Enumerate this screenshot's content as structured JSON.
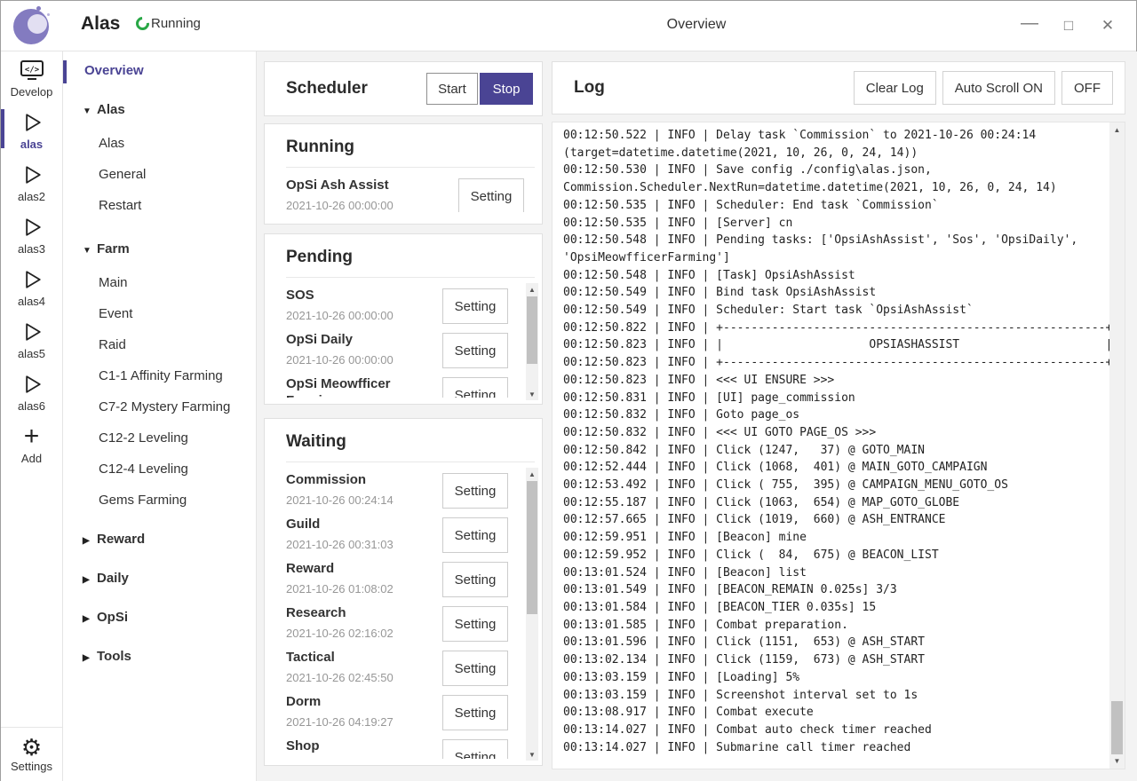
{
  "colors": {
    "accent": "#4a4494",
    "running_green": "#28a745",
    "card_border": "#e0e0e0"
  },
  "icons": {
    "minimize": "—",
    "maximize": "□",
    "close": "✕",
    "gear": "⚙",
    "plus": "+",
    "group_open": "▼",
    "group_closed": "▶",
    "scroll_up": "▲",
    "scroll_down": "▼"
  },
  "app": {
    "title": "Alas",
    "status": "Running"
  },
  "window": {
    "page_title": "Overview"
  },
  "rail": {
    "develop_label": "Develop",
    "instances": [
      {
        "label": "alas"
      },
      {
        "label": "alas2"
      },
      {
        "label": "alas3"
      },
      {
        "label": "alas4"
      },
      {
        "label": "alas5"
      },
      {
        "label": "alas6"
      }
    ],
    "add_label": "Add",
    "settings_label": "Settings"
  },
  "nav": {
    "items": [
      {
        "label": "Overview"
      },
      {
        "label": "Alas",
        "arrow": "▼"
      },
      {
        "label": "Alas"
      },
      {
        "label": "General"
      },
      {
        "label": "Restart"
      },
      {
        "label": "Farm",
        "arrow": "▼"
      },
      {
        "label": "Main"
      },
      {
        "label": "Event"
      },
      {
        "label": "Raid"
      },
      {
        "label": "C1-1 Affinity Farming"
      },
      {
        "label": "C7-2 Mystery Farming"
      },
      {
        "label": "C12-2 Leveling"
      },
      {
        "label": "C12-4 Leveling"
      },
      {
        "label": "Gems Farming"
      },
      {
        "label": "Reward",
        "arrow": "▶"
      },
      {
        "label": "Daily",
        "arrow": "▶"
      },
      {
        "label": "OpSi",
        "arrow": "▶"
      },
      {
        "label": "Tools",
        "arrow": "▶"
      }
    ]
  },
  "scheduler": {
    "title": "Scheduler",
    "start_label": "Start",
    "stop_label": "Stop"
  },
  "cards": {
    "setting_label": "Setting"
  },
  "running": {
    "title": "Running",
    "tasks": [
      {
        "name": "OpSi Ash Assist",
        "time": "2021-10-26 00:00:00"
      }
    ]
  },
  "pending": {
    "title": "Pending",
    "tasks": [
      {
        "name": "SOS",
        "time": "2021-10-26 00:00:00"
      },
      {
        "name": "OpSi Daily",
        "time": "2021-10-26 00:00:00"
      },
      {
        "name": "OpSi Meowfficer Farming",
        "time": ""
      }
    ]
  },
  "waiting": {
    "title": "Waiting",
    "tasks": [
      {
        "name": "Commission",
        "time": "2021-10-26 00:24:14"
      },
      {
        "name": "Guild",
        "time": "2021-10-26 00:31:03"
      },
      {
        "name": "Reward",
        "time": "2021-10-26 01:08:02"
      },
      {
        "name": "Research",
        "time": "2021-10-26 02:16:02"
      },
      {
        "name": "Tactical",
        "time": "2021-10-26 02:45:50"
      },
      {
        "name": "Dorm",
        "time": "2021-10-26 04:19:27"
      },
      {
        "name": "Shop",
        "time": ""
      }
    ]
  },
  "log": {
    "title": "Log",
    "clear_label": "Clear Log",
    "autoscroll_on_label": "Auto Scroll ON",
    "autoscroll_off_label": "OFF",
    "lines": [
      "00:12:50.522 | INFO | Delay task `Commission` to 2021-10-26 00:24:14",
      "(target=datetime.datetime(2021, 10, 26, 0, 24, 14))",
      "00:12:50.530 | INFO | Save config ./config\\alas.json,",
      "Commission.Scheduler.NextRun=datetime.datetime(2021, 10, 26, 0, 24, 14)",
      "00:12:50.535 | INFO | Scheduler: End task `Commission`",
      "00:12:50.535 | INFO | [Server] cn",
      "00:12:50.548 | INFO | Pending tasks: ['OpsiAshAssist', 'Sos', 'OpsiDaily',",
      "'OpsiMeowfficerFarming']",
      "00:12:50.548 | INFO | [Task] OpsiAshAssist",
      "00:12:50.549 | INFO | Bind task OpsiAshAssist",
      "00:12:50.549 | INFO | Scheduler: Start task `OpsiAshAssist`",
      "00:12:50.822 | INFO | +-------------------------------------------------------+",
      "00:12:50.823 | INFO | |                     OPSIASHASSIST                     |",
      "00:12:50.823 | INFO | +-------------------------------------------------------+",
      "00:12:50.823 | INFO | <<< UI ENSURE >>>",
      "00:12:50.831 | INFO | [UI] page_commission",
      "00:12:50.832 | INFO | Goto page_os",
      "00:12:50.832 | INFO | <<< UI GOTO PAGE_OS >>>",
      "00:12:50.842 | INFO | Click (1247,   37) @ GOTO_MAIN",
      "00:12:52.444 | INFO | Click (1068,  401) @ MAIN_GOTO_CAMPAIGN",
      "00:12:53.492 | INFO | Click ( 755,  395) @ CAMPAIGN_MENU_GOTO_OS",
      "00:12:55.187 | INFO | Click (1063,  654) @ MAP_GOTO_GLOBE",
      "00:12:57.665 | INFO | Click (1019,  660) @ ASH_ENTRANCE",
      "00:12:59.951 | INFO | [Beacon] mine",
      "00:12:59.952 | INFO | Click (  84,  675) @ BEACON_LIST",
      "00:13:01.524 | INFO | [Beacon] list",
      "00:13:01.549 | INFO | [BEACON_REMAIN 0.025s] 3/3",
      "00:13:01.584 | INFO | [BEACON_TIER 0.035s] 15",
      "00:13:01.585 | INFO | Combat preparation.",
      "00:13:01.596 | INFO | Click (1151,  653) @ ASH_START",
      "00:13:02.134 | INFO | Click (1159,  673) @ ASH_START",
      "00:13:03.159 | INFO | [Loading] 5%",
      "00:13:03.159 | INFO | Screenshot interval set to 1s",
      "00:13:08.917 | INFO | Combat execute",
      "00:13:14.027 | INFO | Combat auto check timer reached",
      "00:13:14.027 | INFO | Submarine call timer reached"
    ]
  }
}
